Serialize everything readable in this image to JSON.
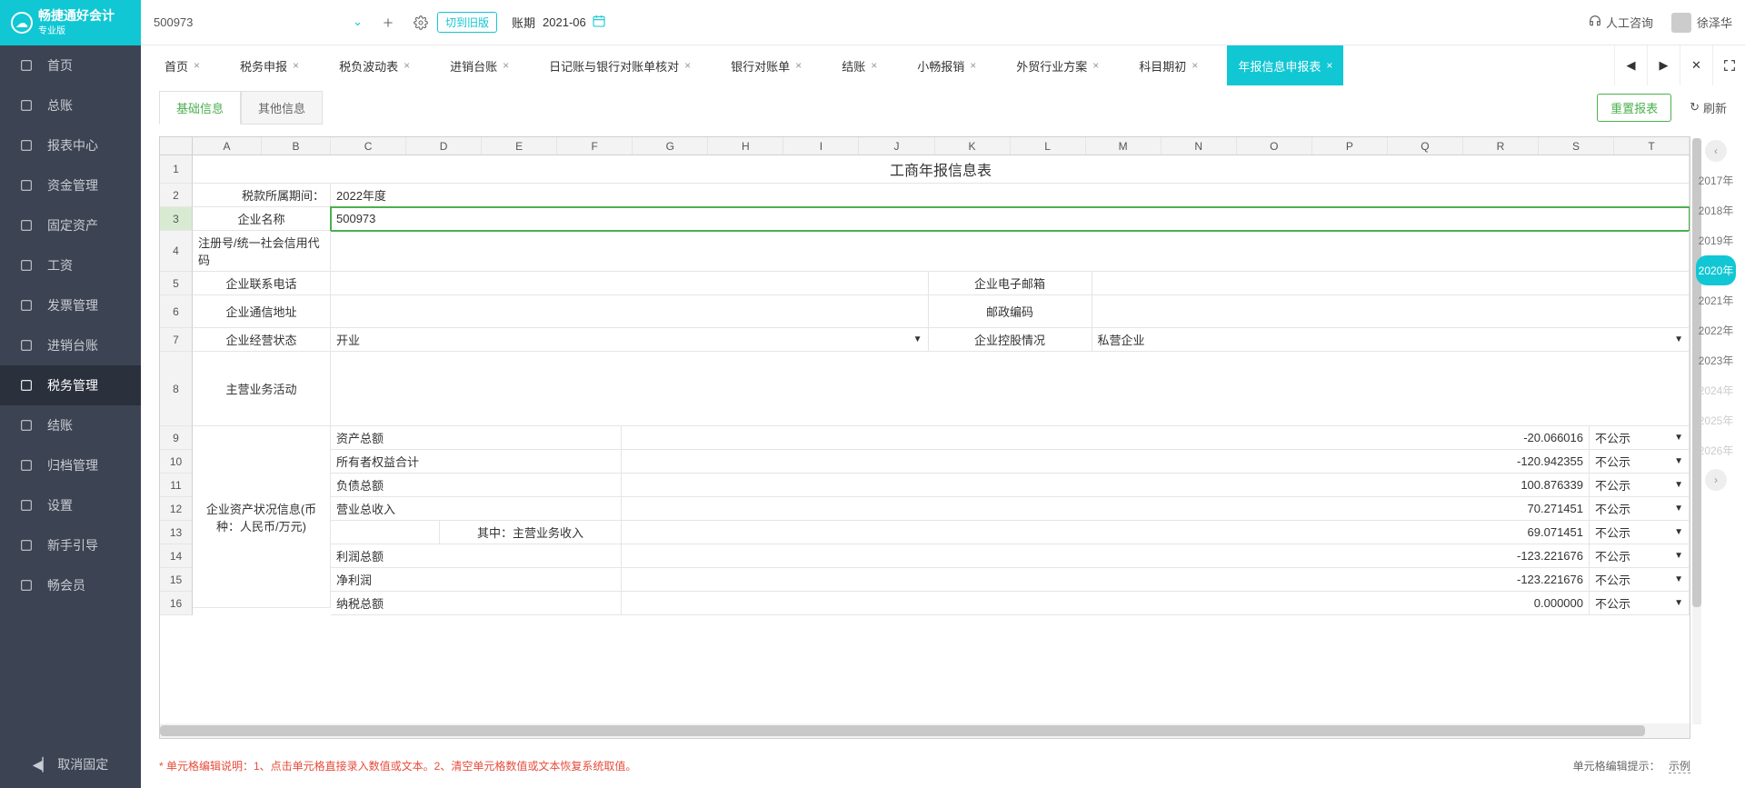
{
  "app": {
    "logo_text": "畅捷通好会计",
    "logo_sub": "专业版"
  },
  "topbar": {
    "company": "500973",
    "switch_old": "切到旧版",
    "period_label": "账期",
    "period_value": "2021-06",
    "human_consult": "人工咨询",
    "user_name": "徐泽华"
  },
  "sidebar": {
    "items": [
      {
        "label": "首页",
        "icon": "home"
      },
      {
        "label": "总账",
        "icon": "ledger"
      },
      {
        "label": "报表中心",
        "icon": "chart"
      },
      {
        "label": "资金管理",
        "icon": "money"
      },
      {
        "label": "固定资产",
        "icon": "asset"
      },
      {
        "label": "工资",
        "icon": "salary"
      },
      {
        "label": "发票管理",
        "icon": "invoice"
      },
      {
        "label": "进销台账",
        "icon": "inventory"
      },
      {
        "label": "税务管理",
        "icon": "tax",
        "active": true
      },
      {
        "label": "结账",
        "icon": "close-period"
      },
      {
        "label": "归档管理",
        "icon": "archive"
      },
      {
        "label": "设置",
        "icon": "settings"
      },
      {
        "label": "新手引导",
        "icon": "guide"
      },
      {
        "label": "畅会员",
        "icon": "vip"
      }
    ],
    "unpin": "取消固定"
  },
  "tabs": [
    {
      "label": "首页",
      "closable": true,
      "truncated": true
    },
    {
      "label": "税务申报",
      "closable": true
    },
    {
      "label": "税负波动表",
      "closable": true
    },
    {
      "label": "进销台账",
      "closable": true
    },
    {
      "label": "日记账与银行对账单核对",
      "closable": true
    },
    {
      "label": "银行对账单",
      "closable": true
    },
    {
      "label": "结账",
      "closable": true
    },
    {
      "label": "小畅报销",
      "closable": true
    },
    {
      "label": "外贸行业方案",
      "closable": true
    },
    {
      "label": "科目期初",
      "closable": true
    },
    {
      "label": "年报信息申报表",
      "closable": true,
      "active": true
    }
  ],
  "subtabs": {
    "basic": "基础信息",
    "other": "其他信息",
    "reset": "重置报表",
    "refresh": "刷新"
  },
  "sheet": {
    "columns": [
      "A",
      "B",
      "C",
      "D",
      "E",
      "F",
      "G",
      "H",
      "I",
      "J",
      "K",
      "L",
      "M",
      "N",
      "O",
      "P",
      "Q",
      "R",
      "S",
      "T"
    ],
    "title": "工商年报信息表",
    "period_label": "税款所属期间：",
    "period_value": "2022年度",
    "company_name_label": "企业名称",
    "company_name_value": "500973",
    "reg_code_label": "注册号/统一社会信用代码",
    "phone_label": "企业联系电话",
    "email_label": "企业电子邮箱",
    "address_label": "企业通信地址",
    "postcode_label": "邮政编码",
    "biz_status_label": "企业经营状态",
    "biz_status_value": "开业",
    "holding_label": "企业控股情况",
    "holding_value": "私营企业",
    "main_activity_label": "主营业务活动",
    "assets_group_label": "企业资产状况信息(币种：人民币/万元)",
    "rows_fin": [
      {
        "label": "资产总额",
        "value": "-20.066016",
        "pub": "不公示"
      },
      {
        "label": "所有者权益合计",
        "value": "-120.942355",
        "pub": "不公示"
      },
      {
        "label": "负债总额",
        "value": "100.876339",
        "pub": "不公示"
      },
      {
        "label_span": "营业总收入",
        "value": "70.271451",
        "pub": "不公示"
      },
      {
        "sub_label": "其中：主营业务收入",
        "value": "69.071451",
        "pub": "不公示"
      },
      {
        "label": "利润总额",
        "value": "-123.221676",
        "pub": "不公示"
      },
      {
        "label": "净利润",
        "value": "-123.221676",
        "pub": "不公示"
      },
      {
        "label": "纳税总额",
        "value": "0.000000",
        "pub": "不公示"
      }
    ]
  },
  "years": {
    "list": [
      "2017年",
      "2018年",
      "2019年",
      "2020年",
      "2021年",
      "2022年",
      "2023年",
      "2024年",
      "2025年",
      "2026年"
    ],
    "active": "2020年",
    "disabled": [
      "2024年",
      "2025年",
      "2026年"
    ]
  },
  "footer": {
    "note": "* 单元格编辑说明：1、点击单元格直接录入数值或文本。2、清空单元格数值或文本恢复系统取值。",
    "hint_label": "单元格编辑提示：",
    "example": "示例"
  }
}
